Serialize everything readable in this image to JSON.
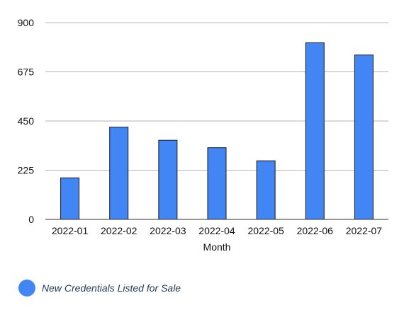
{
  "chart_data": {
    "type": "bar",
    "title": "",
    "xlabel": "Month",
    "ylabel": "",
    "categories": [
      "2022-01",
      "2022-02",
      "2022-03",
      "2022-04",
      "2022-05",
      "2022-06",
      "2022-07"
    ],
    "series": [
      {
        "name": "New Credentials Listed for Sale",
        "values": [
          190,
          422,
          362,
          328,
          268,
          808,
          752
        ],
        "color": "#4285f4"
      }
    ],
    "ylim": [
      0,
      900
    ],
    "yticks": [
      "0",
      "225",
      "450",
      "675",
      "900"
    ],
    "grid": true,
    "legend_position": "bottom-left"
  }
}
